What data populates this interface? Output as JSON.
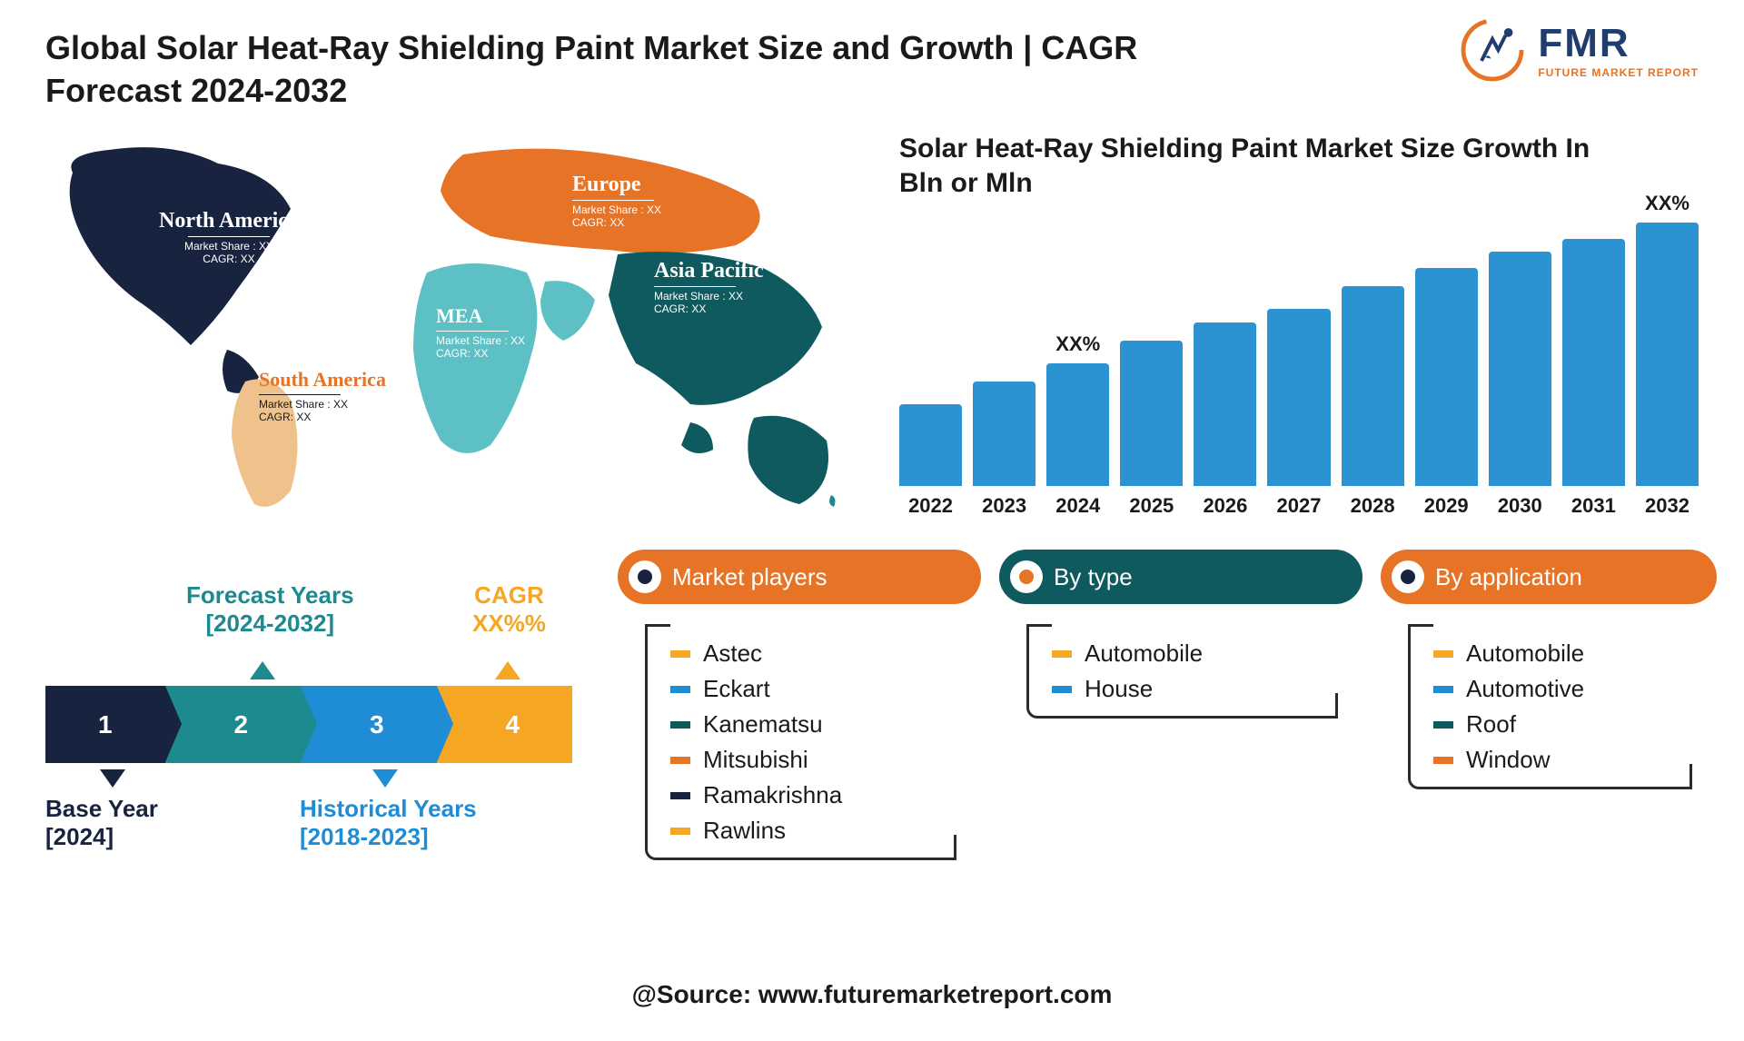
{
  "title": "Global Solar Heat-Ray Shielding Paint  Market Size and Growth | CAGR Forecast 2024-2032",
  "logo": {
    "main": "FMR",
    "sub": "FUTURE MARKET REPORT"
  },
  "colors": {
    "navy": "#18243f",
    "teal": "#1c8a8e",
    "orange": "#e67326",
    "lightTeal": "#5cc0c4",
    "tan": "#f0c28b",
    "blue": "#1f8dd6",
    "darkTeal": "#0f5a5e",
    "yellow": "#f5a623"
  },
  "map": {
    "regions": [
      {
        "name": "North America",
        "share": "Market Share : XX",
        "cagr": "CAGR: XX"
      },
      {
        "name": "South America",
        "share": "Market Share : XX",
        "cagr": "CAGR: XX"
      },
      {
        "name": "Europe",
        "share": "Market Share : XX",
        "cagr": "CAGR: XX"
      },
      {
        "name": "MEA",
        "share": "Market Share : XX",
        "cagr": "CAGR: XX"
      },
      {
        "name": "Asia Pacific",
        "share": "Market Share : XX",
        "cagr": "CAGR: XX"
      }
    ]
  },
  "chart": {
    "title": "Solar Heat-Ray Shielding Paint Market Size Growth In\nBln or Mln",
    "type": "bar",
    "years": [
      "2022",
      "2023",
      "2024",
      "2025",
      "2026",
      "2027",
      "2028",
      "2029",
      "2030",
      "2031",
      "2032"
    ],
    "values": [
      90,
      115,
      135,
      160,
      180,
      195,
      220,
      240,
      258,
      272,
      290
    ],
    "max": 300,
    "bar_color": "#2b93d1",
    "annotations": [
      {
        "index": 2,
        "text": "XX%"
      },
      {
        "index": 10,
        "text": "XX%"
      }
    ],
    "label_fontsize": 22,
    "label_weight": 700
  },
  "timeline": {
    "forecast": {
      "label": "Forecast Years",
      "range": "[2024-2032]",
      "color": "#1c8a8e"
    },
    "cagr": {
      "label": "CAGR",
      "value": "XX%%",
      "color": "#f5a623"
    },
    "base": {
      "label": "Base Year",
      "range": "[2024]",
      "color": "#18243f"
    },
    "historical": {
      "label": "Historical Years",
      "range": "[2018-2023]",
      "color": "#1f8dd6"
    },
    "segments": [
      {
        "num": "1",
        "color": "#18243f"
      },
      {
        "num": "2",
        "color": "#1c8a8e"
      },
      {
        "num": "3",
        "color": "#1f8dd6"
      },
      {
        "num": "4",
        "color": "#f5a623"
      }
    ]
  },
  "categories": [
    {
      "title": "Market players",
      "header_bg": "#e67326",
      "dot": "#18243f",
      "items": [
        {
          "label": "Astec",
          "color": "#f5a623"
        },
        {
          "label": "Eckart",
          "color": "#1f8dd6"
        },
        {
          "label": "Kanematsu",
          "color": "#0f5a5e"
        },
        {
          "label": "Mitsubishi",
          "color": "#e67326"
        },
        {
          "label": "Ramakrishna",
          "color": "#18243f"
        },
        {
          "label": "Rawlins",
          "color": "#f5a623"
        }
      ]
    },
    {
      "title": "By type",
      "header_bg": "#0f5a5e",
      "dot": "#e67326",
      "items": [
        {
          "label": "Automobile",
          "color": "#f5a623"
        },
        {
          "label": "House",
          "color": "#1f8dd6"
        }
      ]
    },
    {
      "title": "By application",
      "header_bg": "#e67326",
      "dot": "#18243f",
      "items": [
        {
          "label": "Automobile",
          "color": "#f5a623"
        },
        {
          "label": "Automotive",
          "color": "#1f8dd6"
        },
        {
          "label": "Roof",
          "color": "#0f5a5e"
        },
        {
          "label": "Window",
          "color": "#e67326"
        }
      ]
    }
  ],
  "source": "@Source: www.futuremarketreport.com"
}
